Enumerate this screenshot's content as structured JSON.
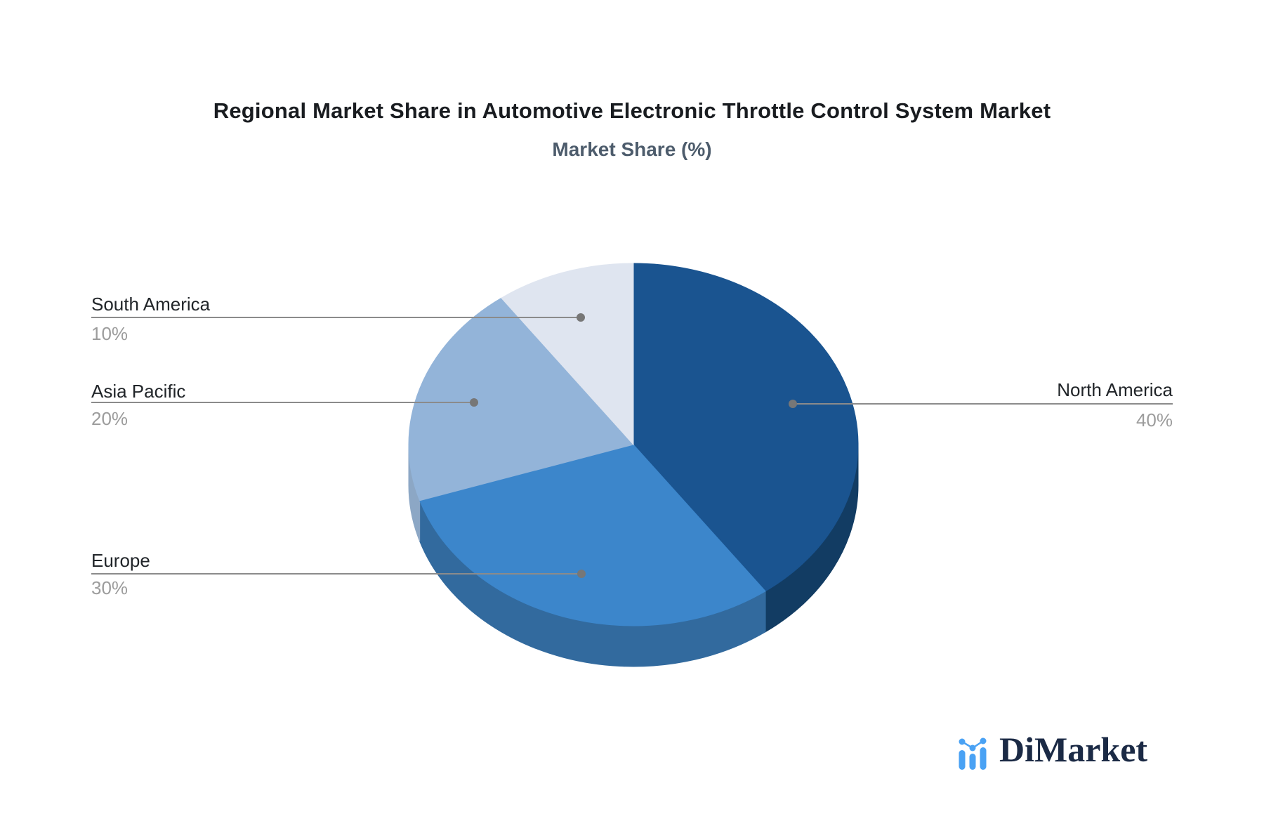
{
  "title": "Regional Market Share in Automotive Electronic Throttle Control System Market",
  "subtitle": "Market Share (%)",
  "chart_data": {
    "type": "pie",
    "style": "3d-pie",
    "title": "Regional Market Share in Automotive Electronic Throttle Control System Market",
    "subtitle": "Market Share (%)",
    "unit": "%",
    "direction": "clockwise",
    "start_angle_deg": 0,
    "categories": [
      "North America",
      "Europe",
      "Asia Pacific",
      "South America"
    ],
    "values": [
      40,
      30,
      20,
      10
    ],
    "slice_colors": [
      "#1a5490",
      "#3c86cb",
      "#93b4d9",
      "#dfe5f0"
    ],
    "depth_colors": [
      "#123c63",
      "#326a9e",
      "#8ca7c5",
      "#c9d2e0"
    ],
    "legend": "none",
    "label_style": "callout-lines-with-dots"
  },
  "slices": [
    {
      "name": "North America",
      "pct": "40%"
    },
    {
      "name": "Europe",
      "pct": "30%"
    },
    {
      "name": "Asia Pacific",
      "pct": "20%"
    },
    {
      "name": "South America",
      "pct": "10%"
    }
  ],
  "logo": {
    "text": "DiMarket",
    "icon": "mini-bar-chart-icon",
    "icon_color": "#4aa2f4",
    "text_color": "#1b2a45"
  },
  "colors": {
    "title": "#191c20",
    "subtitle": "#4d5c6c",
    "region_label": "#212529",
    "pct_label": "#9c9c9c",
    "leader_line": "#8b8b8b",
    "leader_dot": "#777777",
    "background": "#ffffff"
  }
}
